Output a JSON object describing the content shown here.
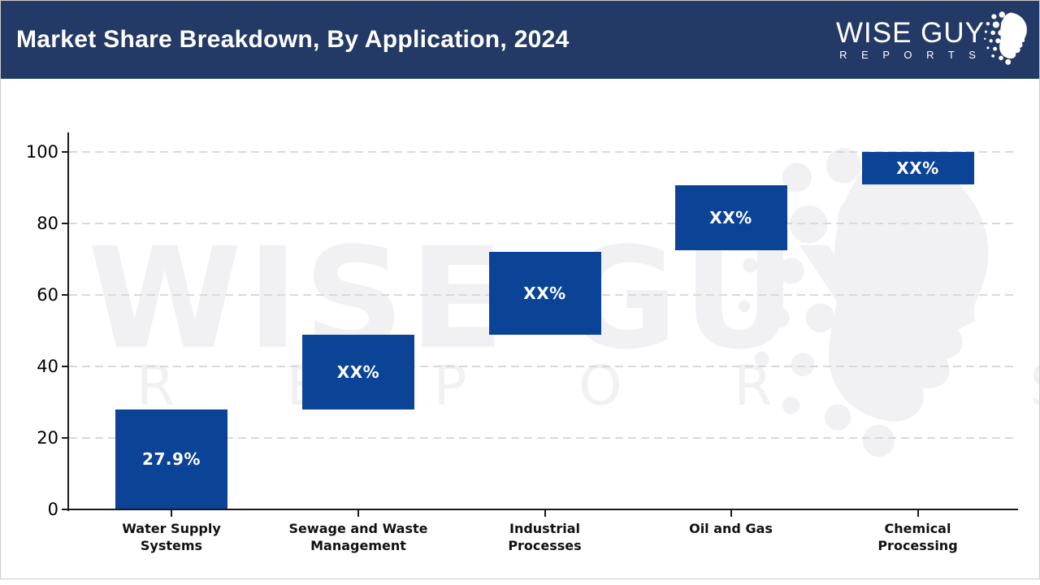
{
  "header": {
    "title": "Market Share Breakdown, By Application, 2024",
    "logo": {
      "name": "Wise Guy Reports",
      "line1": "WISE GUY",
      "line2": "R E P O R T S"
    }
  },
  "watermark": {
    "line1": "WISE GUY",
    "line2": "R E P O R T S"
  },
  "colors": {
    "header_bg": "#233a66",
    "bar": "#0b4397",
    "bar_label_text": "#ffffff",
    "grid": "#d9d9d9",
    "axis": "#1a1a1a",
    "watermark": "#f1f1f4"
  },
  "chart_data": {
    "type": "bar",
    "subtype": "waterfall",
    "title": "Market Share Breakdown, By Application, 2024",
    "xlabel": "",
    "ylabel": "",
    "ylim": [
      0,
      100
    ],
    "yticks": [
      0,
      20,
      40,
      60,
      80,
      100
    ],
    "grid": "horizontal-dashed",
    "legend": "none",
    "categories": [
      "Water Supply\nSystems",
      "Sewage and Waste\nManagement",
      "Industrial\nProcesses",
      "Oil and Gas",
      "Chemical\nProcessing"
    ],
    "segments": [
      {
        "category": "Water Supply Systems",
        "from": 0,
        "to": 27.9,
        "label": "27.9%"
      },
      {
        "category": "Sewage and Waste Management",
        "from": 27.9,
        "to": 48.8,
        "label": "XX%"
      },
      {
        "category": "Industrial Processes",
        "from": 48.9,
        "to": 72.1,
        "label": "XX%"
      },
      {
        "category": "Oil and Gas",
        "from": 72.5,
        "to": 90.6,
        "label": "XX%"
      },
      {
        "category": "Chemical Processing",
        "from": 90.9,
        "to": 100,
        "label": "XX%"
      }
    ]
  }
}
